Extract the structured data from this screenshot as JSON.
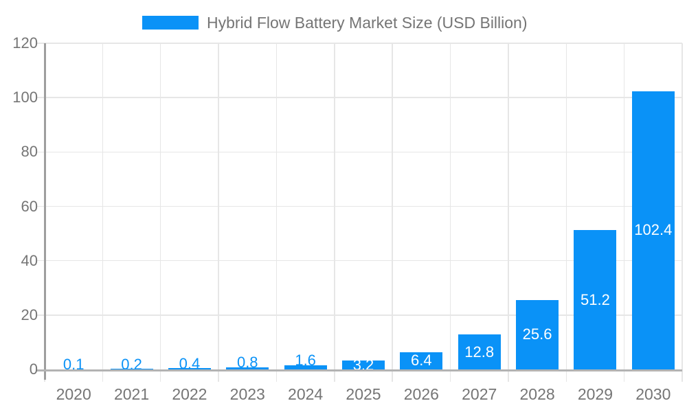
{
  "legend": {
    "label": "Hybrid Flow Battery Market Size (USD Billion)"
  },
  "chart_data": {
    "type": "bar",
    "title": "Hybrid Flow Battery Market Size (USD Billion)",
    "categories": [
      "2020",
      "2021",
      "2022",
      "2023",
      "2024",
      "2025",
      "2026",
      "2027",
      "2028",
      "2029",
      "2030"
    ],
    "values": [
      0.1,
      0.2,
      0.4,
      0.8,
      1.6,
      3.2,
      6.4,
      12.8,
      25.6,
      51.2,
      102.4
    ],
    "annotations": [
      "0.1",
      "0.2",
      "0.4",
      "0.8",
      "1.6",
      "3.2",
      "6.4",
      "12.8",
      "25.6",
      "51.2",
      "102.4"
    ],
    "xlabel": "",
    "ylabel": "",
    "ylim": [
      0,
      120
    ],
    "yticks": [
      "0",
      "20",
      "40",
      "60",
      "80",
      "100",
      "120"
    ],
    "grid": true,
    "legend_position": "top",
    "colors": {
      "bar": "#0a92f7",
      "annotation_inside": "#ffffff",
      "annotation_outside": "#0a92f7",
      "axis_text": "#757575",
      "gridline": "#e6e6e6",
      "baseline": "#b3b3b3",
      "vertical_axis": "#9e9e9e"
    }
  }
}
